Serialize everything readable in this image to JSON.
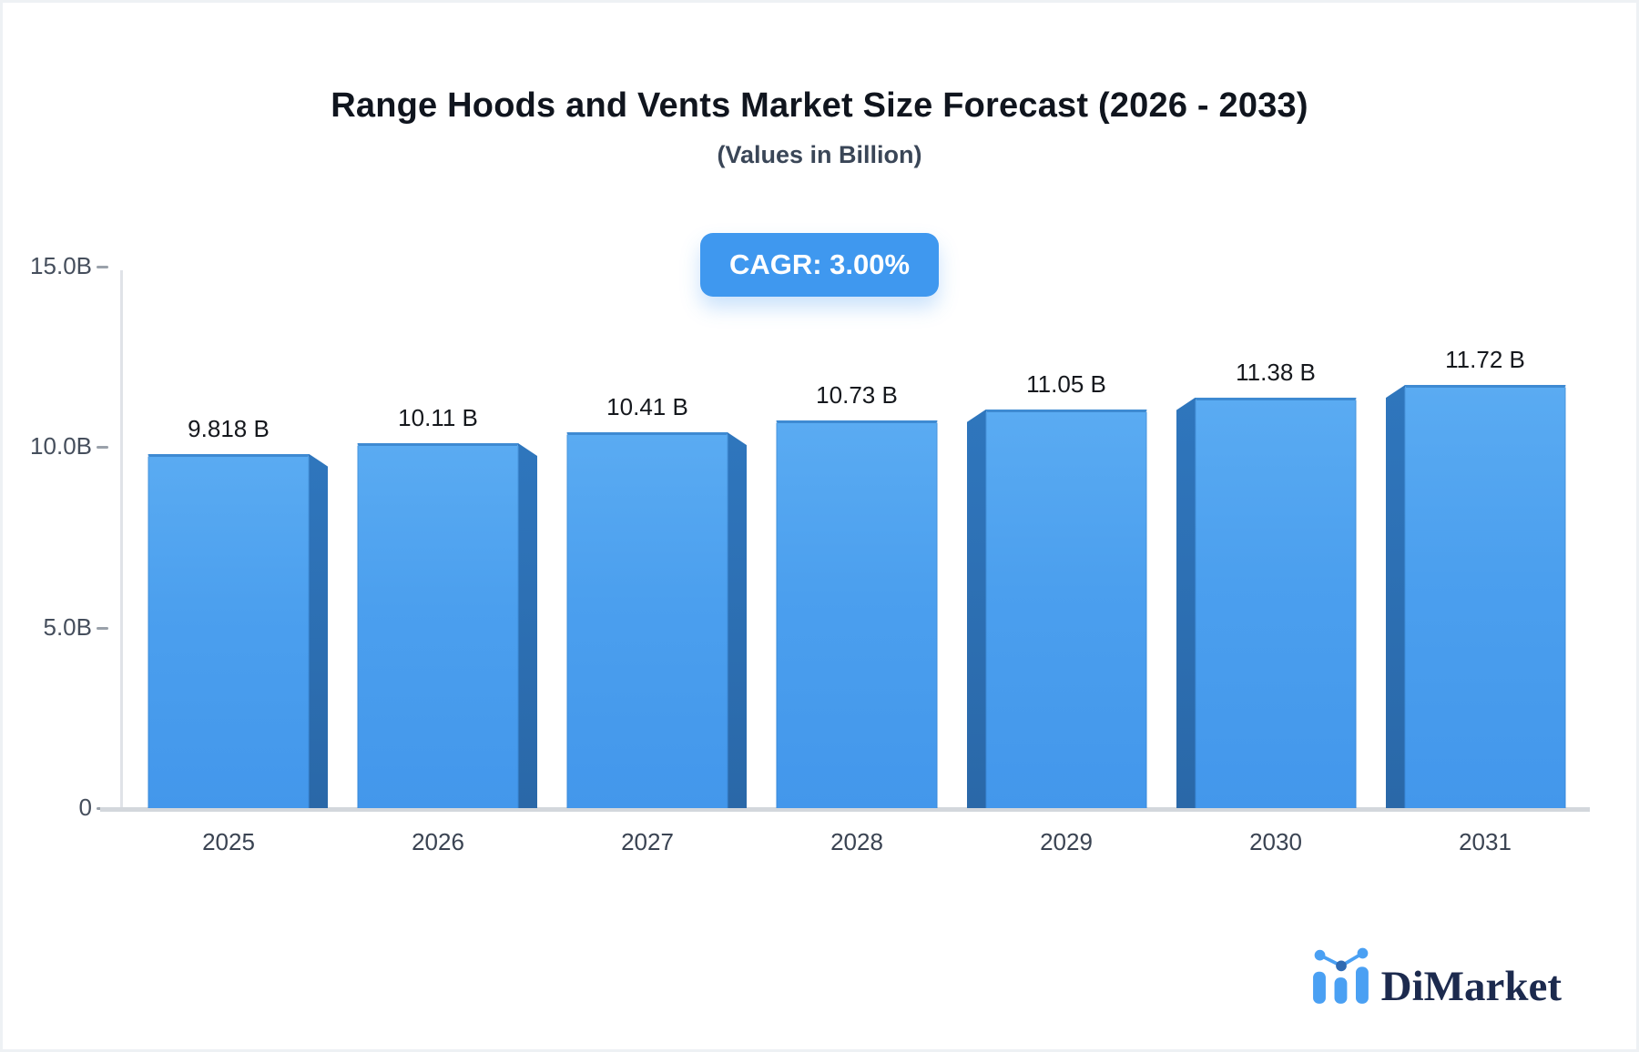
{
  "header": {
    "title": "Range Hoods and Vents Market Size Forecast (2026 - 2033)",
    "subtitle": "(Values in Billion)",
    "cagr_badge": "CAGR: 3.00%"
  },
  "chart_data": {
    "type": "bar",
    "title": "Range Hoods and Vents Market Size Forecast (2026 - 2033)",
    "subtitle": "(Values in Billion)",
    "categories": [
      "2025",
      "2026",
      "2027",
      "2028",
      "2029",
      "2030",
      "2031"
    ],
    "values": [
      9.818,
      10.11,
      10.41,
      10.73,
      11.05,
      11.38,
      11.72
    ],
    "value_labels": [
      "9.818 B",
      "10.11 B",
      "10.41 B",
      "10.73 B",
      "11.05 B",
      "11.38 B",
      "11.72 B"
    ],
    "xlabel": "",
    "ylabel": "",
    "ylim": [
      0,
      15
    ],
    "y_ticks_top_to_bottom": [
      "15.0B",
      "10.0B",
      "5.0B",
      "0"
    ],
    "grid": "off",
    "legend": "none",
    "annotations": [
      "CAGR: 3.00%"
    ],
    "colors": {
      "bar_face": "#4b9fee",
      "bar_face_light": "#5aabf2",
      "bar_side_3d": "#2d70b5",
      "bar_top_edge": "#3e8ad2",
      "badge": "#3f98ef",
      "axis_line": "#d3d7dc",
      "tick_text": "#454e5c"
    }
  },
  "branding": {
    "logo_text": "DiMarket",
    "logo_icon": "bar-chart-logo-icon",
    "logo_color": "#1c2a4e",
    "logo_icon_color": "#4aa0f3"
  }
}
